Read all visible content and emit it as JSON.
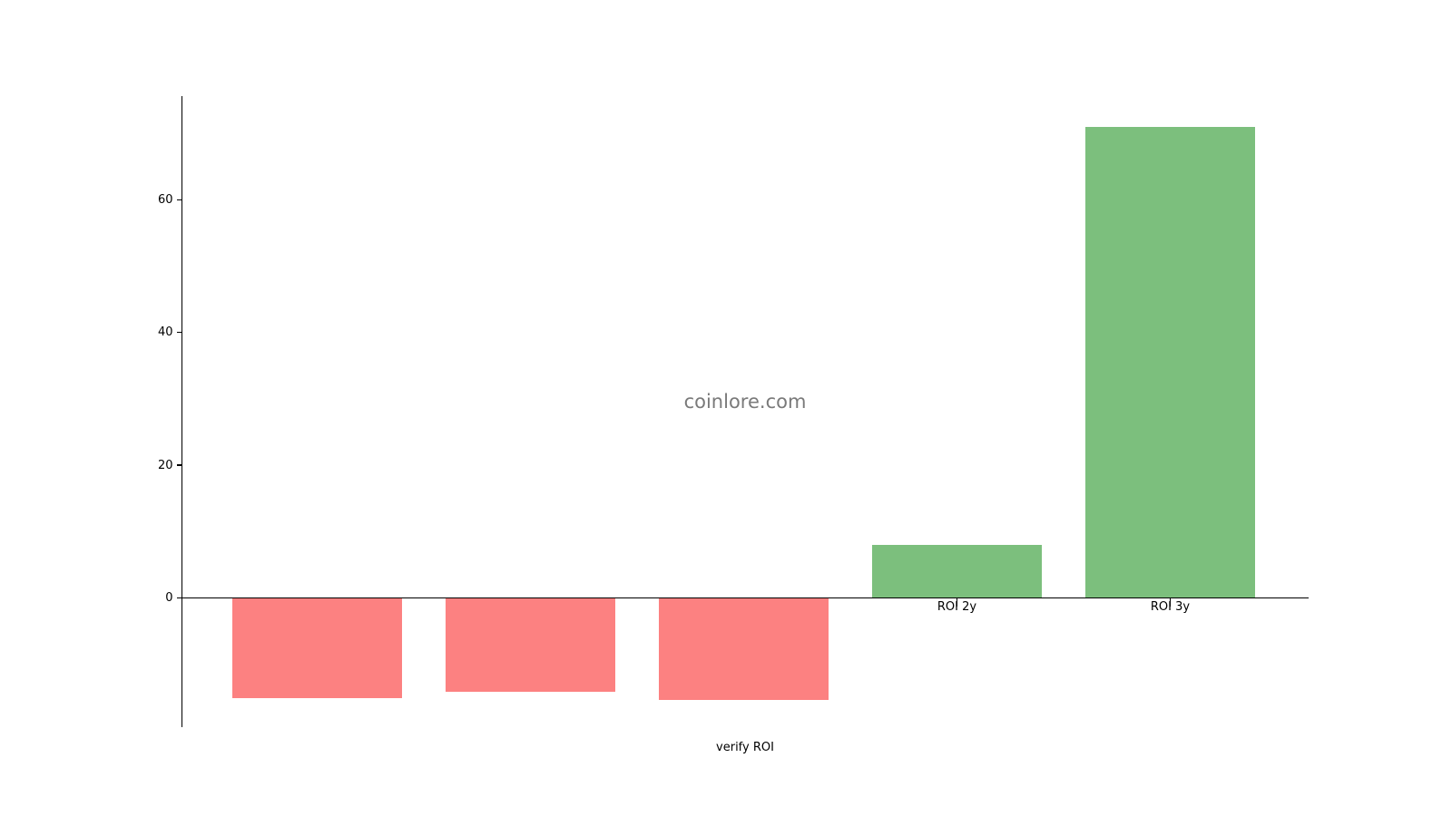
{
  "watermark": "coinlore.com",
  "colors": {
    "positive_bar": "#7cbf7d",
    "negative_bar": "#fc8181",
    "axis": "#000000",
    "watermark_text": "#7a7a7a",
    "background": "#ffffff"
  },
  "chart_data": {
    "type": "bar",
    "categories": [
      "",
      "",
      "",
      "ROI 2y",
      "ROI 3y"
    ],
    "values": [
      -15,
      -14.1,
      -15.2,
      8,
      71
    ],
    "bar_colors": [
      "#fc8181",
      "#fc8181",
      "#fc8181",
      "#7cbf7d",
      "#7cbf7d"
    ],
    "title": "",
    "xlabel": "verify ROI",
    "ylabel": "",
    "yticks": [
      0,
      20,
      40,
      60
    ],
    "ylim": [
      -19.5,
      75.5
    ],
    "grid": false,
    "legend": "none"
  }
}
